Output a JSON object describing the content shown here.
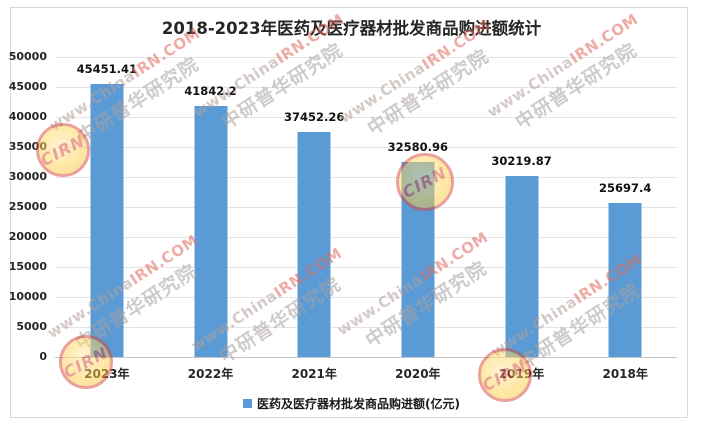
{
  "title": "2018-2023年医药及医疗器材批发商品购进额统计",
  "chart_data": {
    "type": "bar",
    "categories": [
      "2023年",
      "2022年",
      "2021年",
      "2020年",
      "2019年",
      "2018年"
    ],
    "values": [
      45451.41,
      41842.2,
      37452.26,
      32580.96,
      30219.87,
      25697.4
    ],
    "value_labels": [
      "45451.41",
      "41842.2",
      "37452.26",
      "32580.96",
      "30219.87",
      "25697.4"
    ],
    "title": "2018-2023年医药及医疗器材批发商品购进额统计",
    "xlabel": "",
    "ylabel": "",
    "ylim": [
      0,
      50000
    ],
    "ytick_step": 5000,
    "yticks": [
      "50000",
      "45000",
      "40000",
      "35000",
      "30000",
      "25000",
      "20000",
      "15000",
      "10000",
      "5000",
      "0"
    ],
    "grid": true,
    "legend_position": "bottom",
    "bar_color": "#5B9BD5",
    "series": [
      {
        "name": "医药及医疗器材批发商品购进额(亿元)",
        "values": [
          45451.41,
          41842.2,
          37452.26,
          32580.96,
          30219.87,
          25697.4
        ]
      }
    ]
  },
  "legend": {
    "label": "医药及医疗器材批发商品购进额(亿元)",
    "marker_color": "#5B9BD5"
  },
  "watermark": {
    "url_prefix": "www.China",
    "url_suffix": "IRN.COM",
    "org": "中研普华研究院",
    "logo": "CIRN",
    "red": "#E06A5E",
    "gray": "#A8A2A0",
    "logo_yellow": "#FFD24D",
    "logo_red": "#D9453A"
  }
}
